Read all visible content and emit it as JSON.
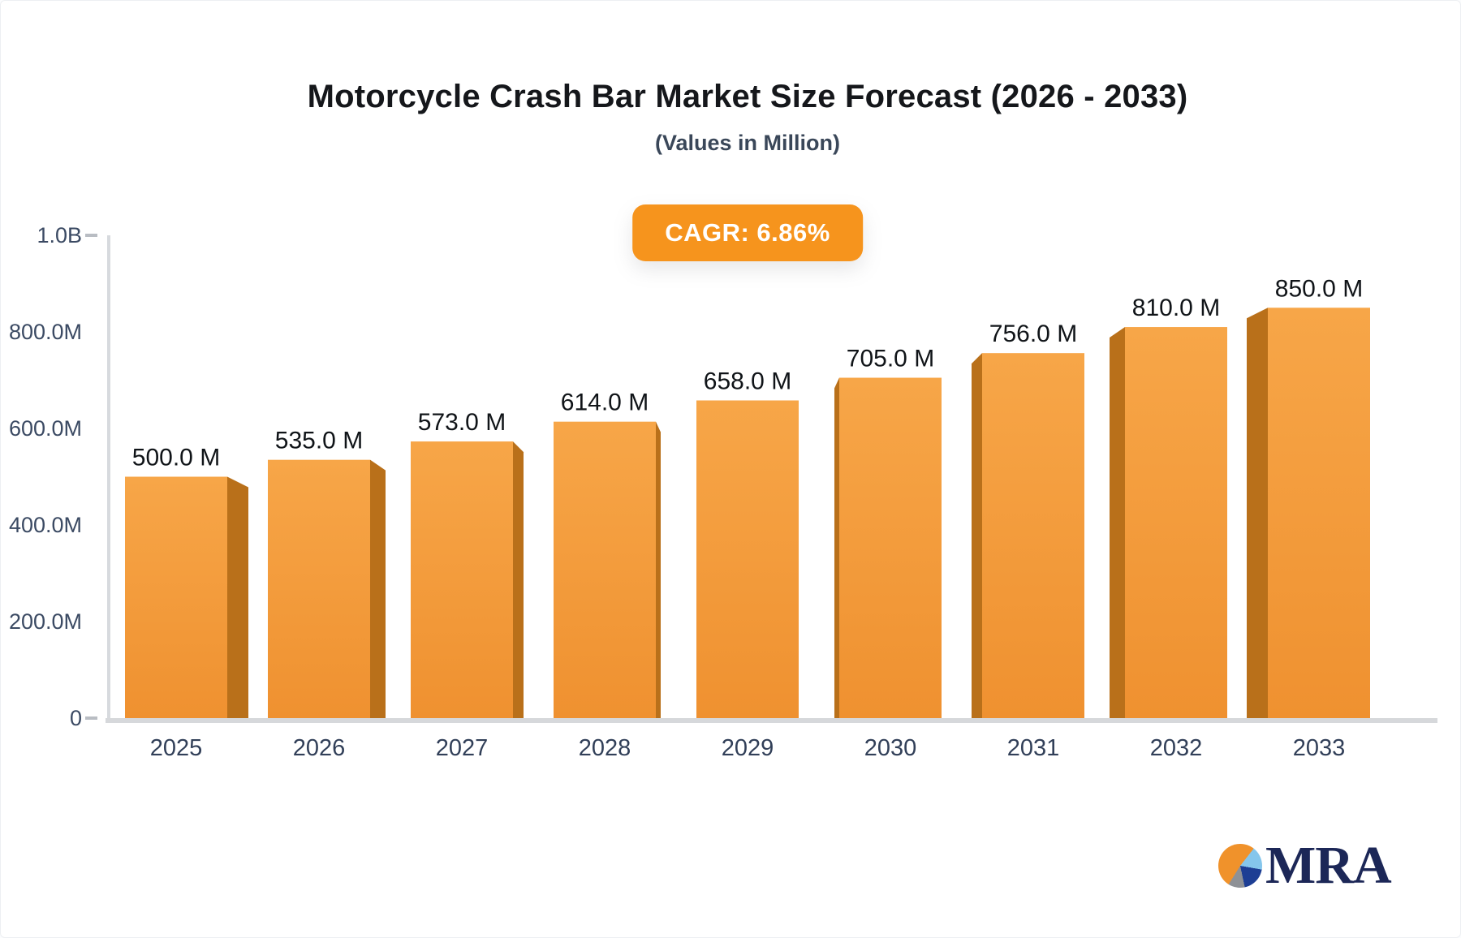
{
  "page": {
    "title": "Motorcycle Crash Bar Market Size Forecast (2026 - 2033)",
    "subtitle": "(Values in Million)",
    "cagr_label": "CAGR: 6.86%"
  },
  "chart_data": {
    "type": "bar",
    "title": "Motorcycle Crash Bar Market Size Forecast (2026 - 2033)",
    "subtitle": "(Values in Million)",
    "annotation": "CAGR: 6.86%",
    "categories": [
      "2025",
      "2026",
      "2027",
      "2028",
      "2029",
      "2030",
      "2031",
      "2032",
      "2033"
    ],
    "values": [
      500,
      535,
      573,
      614,
      658,
      705,
      756,
      810,
      850
    ],
    "value_labels": [
      "500.0 M",
      "535.0 M",
      "573.0 M",
      "614.0 M",
      "658.0 M",
      "705.0 M",
      "756.0 M",
      "810.0 M",
      "850.0 M"
    ],
    "y_ticks": [
      {
        "label": "1.0B",
        "value": 1000
      },
      {
        "label": "800.0M",
        "value": 800
      },
      {
        "label": "600.0M",
        "value": 600
      },
      {
        "label": "400.0M",
        "value": 400
      },
      {
        "label": "200.0M",
        "value": 200
      },
      {
        "label": "0",
        "value": 0
      }
    ],
    "ylim": [
      0,
      1000
    ],
    "grid": false,
    "legend": "none",
    "colors": {
      "bar_top": "#f7a648",
      "bar_bottom": "#ef9130",
      "bar_side": "#b9701a",
      "axis_line": "#d7dade",
      "tick_dash": "#b9bdc3",
      "baseline": "#d6d8db",
      "y_label": "#3b4a63",
      "x_label": "#313f58",
      "value_label": "#101418",
      "badge_bg": "#f6941d"
    }
  },
  "logo": {
    "text": "MRA",
    "pie_colors": {
      "orange": "#f0922b",
      "light_blue": "#85c6ec",
      "dark_blue": "#1d3e94",
      "gray": "#8e9196"
    }
  }
}
